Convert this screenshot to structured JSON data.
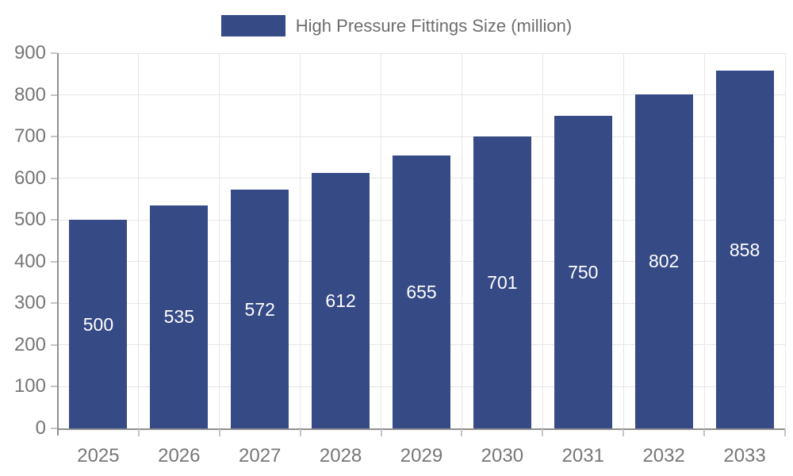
{
  "page": {
    "background": "#ffffff"
  },
  "legend": {
    "label": "High Pressure Fittings Size (million)"
  },
  "chart_data": {
    "type": "bar",
    "title": "High Pressure Fittings Size (million)",
    "categories": [
      "2025",
      "2026",
      "2027",
      "2028",
      "2029",
      "2030",
      "2031",
      "2032",
      "2033"
    ],
    "values": [
      500,
      535,
      572,
      612,
      655,
      701,
      750,
      802,
      858
    ],
    "xlabel": "",
    "ylabel": "",
    "ylim": [
      0,
      900
    ],
    "y_ticks": [
      0,
      100,
      200,
      300,
      400,
      500,
      600,
      700,
      800,
      900
    ],
    "grid": true,
    "legend_position": "top",
    "colors": {
      "bar": "#364a85",
      "grid": "#e6e6e6",
      "axis": "#8f8f8f",
      "tick_mark": "#c4c4c4",
      "tick_label": "#767676",
      "legend_text": "#6d6d6d",
      "value_label": "#ffffff"
    }
  }
}
